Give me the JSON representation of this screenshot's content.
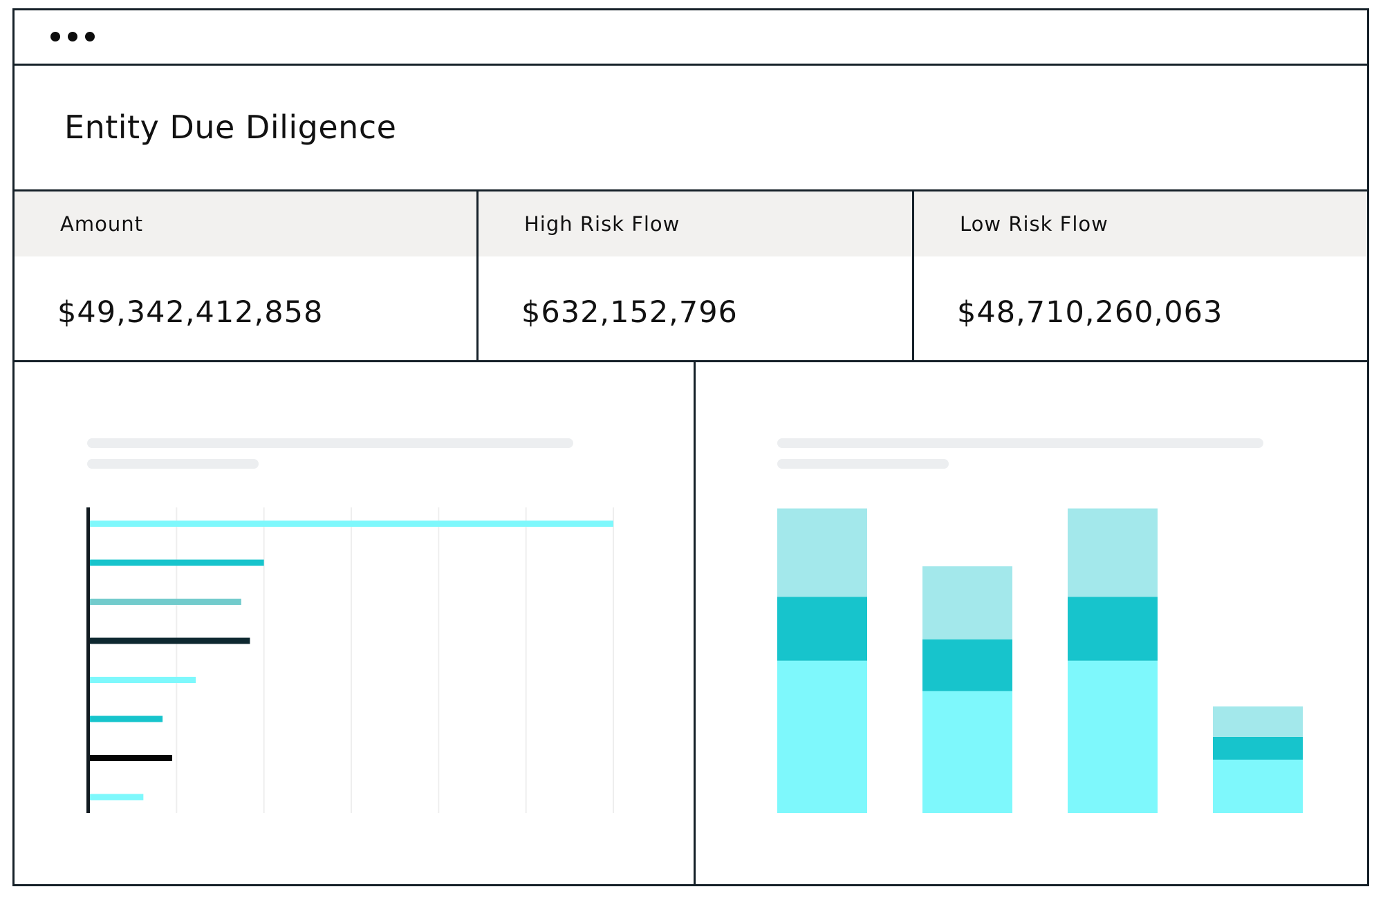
{
  "window": {
    "menu_icon": "ellipsis-icon"
  },
  "header": {
    "title": "Entity Due Diligence"
  },
  "stats": [
    {
      "label": "Amount",
      "value": "$49,342,412,858"
    },
    {
      "label": "High Risk Flow",
      "value": "$632,152,796"
    },
    {
      "label": "Low Risk Flow",
      "value": "$48,710,260,063"
    }
  ],
  "chart_data": [
    {
      "type": "bar",
      "orientation": "horizontal",
      "title": "",
      "xlim": [
        0,
        6
      ],
      "grid": true,
      "bars": [
        {
          "value": 6.0,
          "color": "#7ef8fc"
        },
        {
          "value": 2.0,
          "color": "#17c4cc"
        },
        {
          "value": 1.74,
          "color": "#72cbcc"
        },
        {
          "value": 1.84,
          "color": "#0e2830"
        },
        {
          "value": 1.22,
          "color": "#7ef8fc"
        },
        {
          "value": 0.84,
          "color": "#17c4cc"
        },
        {
          "value": 0.95,
          "color": "#050505"
        },
        {
          "value": 0.62,
          "color": "#7ef8fc"
        }
      ]
    },
    {
      "type": "bar",
      "stacked": true,
      "title": "",
      "ylim": [
        0,
        100
      ],
      "series": [
        {
          "values": [
            50,
            40,
            50,
            17.5
          ],
          "color": "#7ef8fc"
        },
        {
          "values": [
            21,
            17,
            21,
            7.5
          ],
          "color": "#17c4cc"
        },
        {
          "values": [
            29,
            24,
            29,
            10
          ],
          "color": "#a3e8eb"
        }
      ]
    }
  ]
}
